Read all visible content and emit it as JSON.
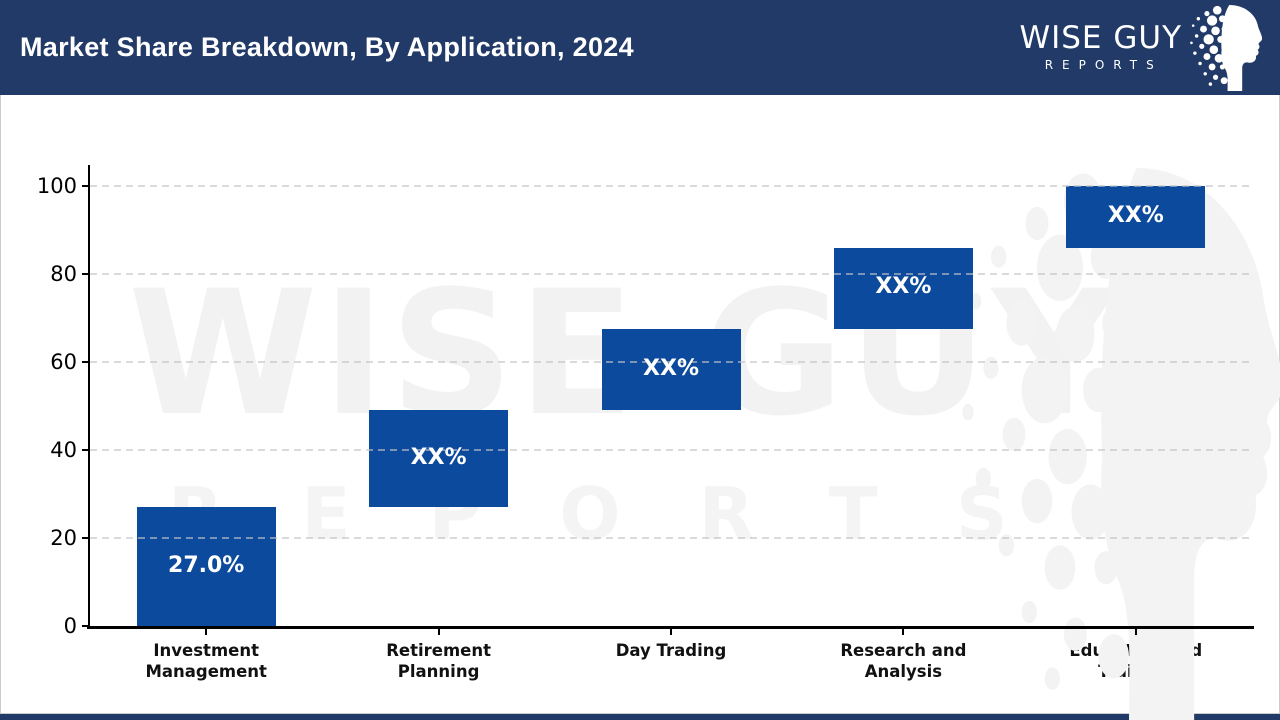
{
  "header": {
    "title": "Market Share Breakdown, By Application, 2024",
    "logo": {
      "name": "WISE GUY",
      "sub": "REPORTS"
    }
  },
  "watermark": {
    "line1": "WISE GUY",
    "line2": "REPORTS"
  },
  "colors": {
    "header_bg": "#223a67",
    "bar_blue": "#0c4a9e",
    "grid_gray": "#c9c9c9",
    "watermark_gray": "#f2f2f2",
    "footer_bar": "#223a67"
  },
  "chart_data": {
    "type": "bar",
    "variant": "waterfall",
    "title": "Market Share Breakdown, By Application, 2024",
    "xlabel": "",
    "ylabel": "",
    "ylim": [
      0,
      105
    ],
    "y_ticks": [
      0,
      20,
      40,
      60,
      80,
      100
    ],
    "grid": "horizontal dashed",
    "legend": "none",
    "bar_color": "#0c4a9e",
    "value_label_color": "#ffffff",
    "categories": [
      "Investment Management",
      "Retirement Planning",
      "Day Trading",
      "Research and Analysis",
      "Education and Training"
    ],
    "category_display": [
      "Investment\nManagement",
      "Retirement\nPlanning",
      "Day Trading",
      "Research and\nAnalysis",
      "Education and\nTraining"
    ],
    "bars": [
      {
        "category": "Investment Management",
        "start": 0,
        "end": 27,
        "label": "27.0%"
      },
      {
        "category": "Retirement Planning",
        "start": 27,
        "end": 49,
        "label": "XX%"
      },
      {
        "category": "Day Trading",
        "start": 49,
        "end": 67.5,
        "label": "XX%"
      },
      {
        "category": "Research and Analysis",
        "start": 67.5,
        "end": 86,
        "label": "XX%"
      },
      {
        "category": "Education and Training",
        "start": 86,
        "end": 100,
        "label": "XX%"
      }
    ]
  }
}
